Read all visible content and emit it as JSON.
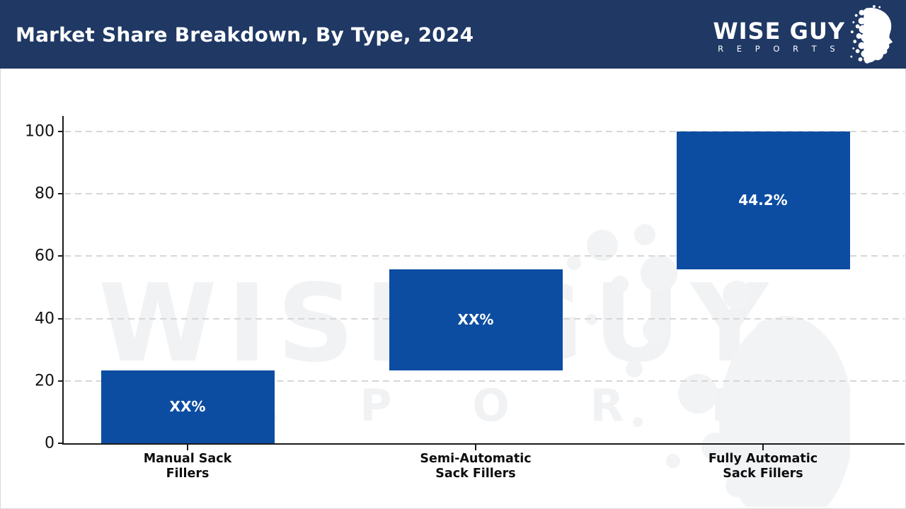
{
  "header": {
    "title": "Market Share Breakdown, By Type, 2024",
    "bg_color": "#1F3864",
    "logo": {
      "line1": "WISE GUY",
      "line2": "R E P O R T S"
    }
  },
  "watermark": {
    "line1": "WISE GUY",
    "line2": "R E P O R T S"
  },
  "chart_data": {
    "type": "bar",
    "subtype": "waterfall",
    "title": "Market Share Breakdown, By Type, 2024",
    "categories": [
      [
        "Manual Sack",
        "Fillers"
      ],
      [
        "Semi-Automatic",
        "Sack Fillers"
      ],
      [
        "Fully Automatic",
        "Sack Fillers"
      ]
    ],
    "bars": [
      {
        "base": 0,
        "value": 23.4,
        "label": "XX%"
      },
      {
        "base": 23.4,
        "value": 32.4,
        "label": "XX%"
      },
      {
        "base": 55.8,
        "value": 44.2,
        "label": "44.2%"
      }
    ],
    "ylim": [
      0,
      100
    ],
    "yticks": [
      0,
      20,
      40,
      60,
      80,
      100
    ],
    "grid": "horizontal-dashed",
    "legend": "none",
    "bar_color": "#0C4DA2",
    "grid_color": "#d7d7d7"
  }
}
